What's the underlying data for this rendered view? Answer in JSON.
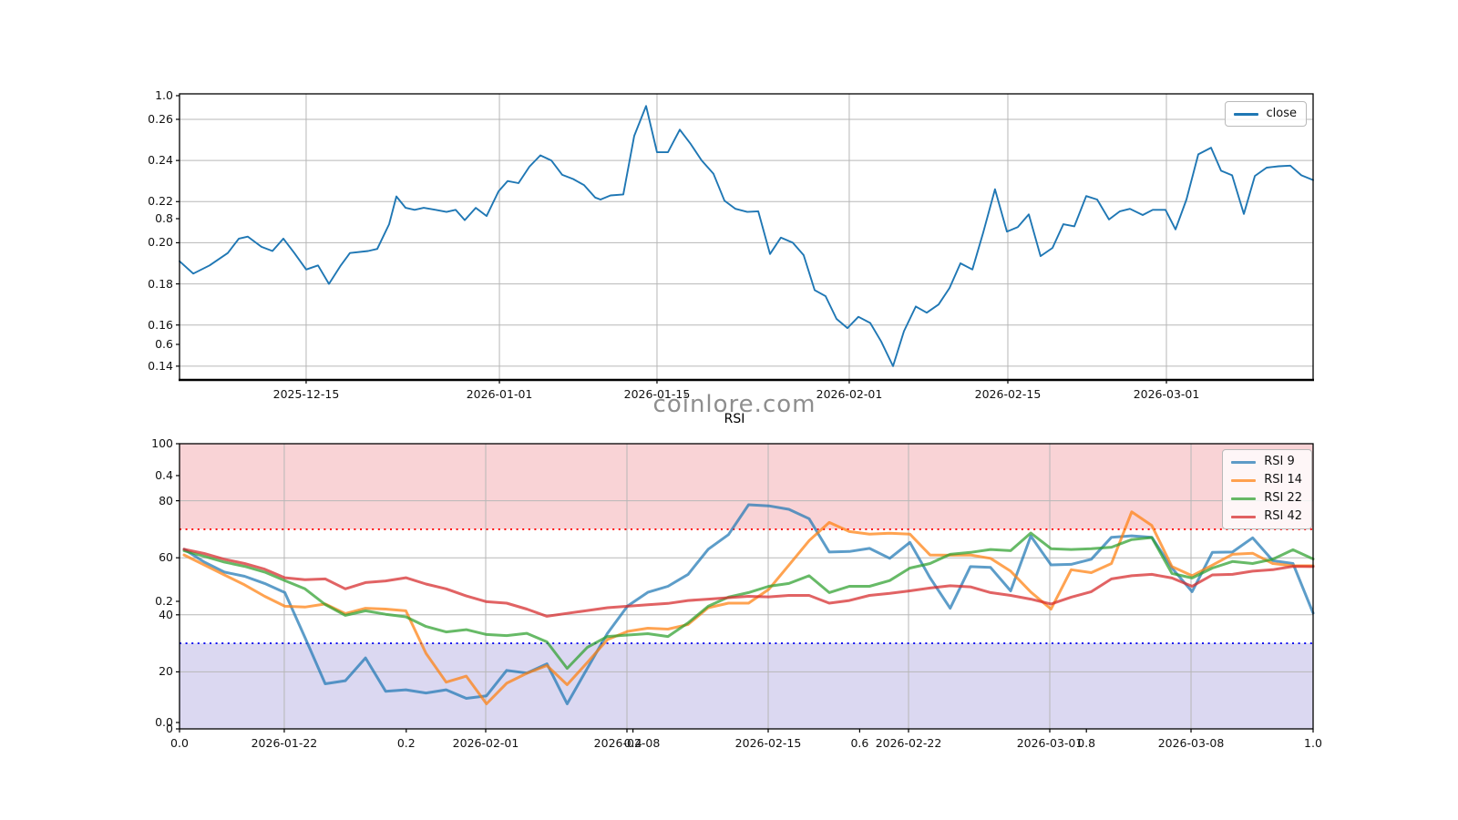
{
  "watermark": "coinlore.com",
  "colors": {
    "close": "#1f77b4",
    "rsi9": "#1f77b4",
    "rsi14": "#ff7f0e",
    "rsi22": "#2ca02c",
    "rsi42": "#d62728",
    "grid": "#b7b7b7",
    "overbought_fill": "#f9d3d6",
    "oversold_fill": "#dbd8f1",
    "overbought_line": "#ff0000",
    "oversold_line": "#0000ee"
  },
  "chart_data": [
    {
      "type": "line",
      "title": "",
      "legend_entries": [
        "close"
      ],
      "ylim": [
        0.1333,
        0.2724
      ],
      "grid": true,
      "legend_position": "upper right",
      "yticks": [
        {
          "label": "0.26",
          "v": 0.26
        },
        {
          "label": "0.24",
          "v": 0.24
        },
        {
          "label": "0.22",
          "v": 0.22
        },
        {
          "label": "0.20",
          "v": 0.2
        },
        {
          "label": "0.18",
          "v": 0.18
        },
        {
          "label": "0.16",
          "v": 0.16
        },
        {
          "label": "0.14",
          "v": 0.14
        }
      ],
      "yticks2": [
        {
          "label": "1.0",
          "fy": 0.0064
        },
        {
          "label": "0.8",
          "fy": 0.4363
        },
        {
          "label": "0.6",
          "fy": 0.8758
        }
      ],
      "xticks": [
        {
          "label": "2025-12-15",
          "f": 0.1117
        },
        {
          "label": "2026-01-01",
          "f": 0.2822
        },
        {
          "label": "2026-01-15",
          "f": 0.4212
        },
        {
          "label": "2026-02-01",
          "f": 0.5908
        },
        {
          "label": "2026-02-15",
          "f": 0.7307
        },
        {
          "label": "2026-03-01",
          "f": 0.8706
        }
      ],
      "xticks2": [],
      "x_range_dates": [
        "2025-12-04",
        "2026-03-14"
      ],
      "series": [
        {
          "name": "close",
          "color": "#1f77b4",
          "width": 1.9,
          "opacity": 1,
          "points": [
            [
              0.0,
              0.191
            ],
            [
              0.0121,
              0.185
            ],
            [
              0.0265,
              0.189
            ],
            [
              0.0426,
              0.195
            ],
            [
              0.0523,
              0.202
            ],
            [
              0.0603,
              0.203
            ],
            [
              0.0723,
              0.198
            ],
            [
              0.082,
              0.196
            ],
            [
              0.0916,
              0.202
            ],
            [
              0.1013,
              0.195
            ],
            [
              0.1117,
              0.187
            ],
            [
              0.1222,
              0.189
            ],
            [
              0.1318,
              0.18
            ],
            [
              0.1423,
              0.189
            ],
            [
              0.1503,
              0.195
            ],
            [
              0.1664,
              0.196
            ],
            [
              0.1744,
              0.197
            ],
            [
              0.1849,
              0.209
            ],
            [
              0.1913,
              0.2225
            ],
            [
              0.1994,
              0.217
            ],
            [
              0.2074,
              0.216
            ],
            [
              0.2154,
              0.217
            ],
            [
              0.2259,
              0.216
            ],
            [
              0.2355,
              0.215
            ],
            [
              0.2436,
              0.216
            ],
            [
              0.2516,
              0.211
            ],
            [
              0.2613,
              0.217
            ],
            [
              0.2709,
              0.213
            ],
            [
              0.2814,
              0.225
            ],
            [
              0.2894,
              0.23
            ],
            [
              0.299,
              0.229
            ],
            [
              0.3087,
              0.237
            ],
            [
              0.3183,
              0.2425
            ],
            [
              0.328,
              0.24
            ],
            [
              0.3376,
              0.233
            ],
            [
              0.3473,
              0.231
            ],
            [
              0.3569,
              0.228
            ],
            [
              0.3666,
              0.222
            ],
            [
              0.3714,
              0.221
            ],
            [
              0.3802,
              0.223
            ],
            [
              0.3915,
              0.2235
            ],
            [
              0.4011,
              0.252
            ],
            [
              0.4116,
              0.2665
            ],
            [
              0.4212,
              0.244
            ],
            [
              0.4309,
              0.244
            ],
            [
              0.4413,
              0.255
            ],
            [
              0.451,
              0.248
            ],
            [
              0.4606,
              0.24
            ],
            [
              0.4711,
              0.2335
            ],
            [
              0.4807,
              0.2205
            ],
            [
              0.4904,
              0.2165
            ],
            [
              0.5008,
              0.215
            ],
            [
              0.5105,
              0.2153
            ],
            [
              0.5209,
              0.1945
            ],
            [
              0.5305,
              0.2025
            ],
            [
              0.541,
              0.2
            ],
            [
              0.5506,
              0.194
            ],
            [
              0.5603,
              0.177
            ],
            [
              0.5699,
              0.174
            ],
            [
              0.5796,
              0.163
            ],
            [
              0.5892,
              0.1585
            ],
            [
              0.5989,
              0.164
            ],
            [
              0.6093,
              0.161
            ],
            [
              0.619,
              0.152
            ],
            [
              0.6294,
              0.14
            ],
            [
              0.6391,
              0.157
            ],
            [
              0.6495,
              0.169
            ],
            [
              0.6592,
              0.166
            ],
            [
              0.6696,
              0.17
            ],
            [
              0.6793,
              0.178
            ],
            [
              0.6889,
              0.19
            ],
            [
              0.6994,
              0.187
            ],
            [
              0.709,
              0.205
            ],
            [
              0.7194,
              0.226
            ],
            [
              0.7299,
              0.2054
            ],
            [
              0.7395,
              0.2076
            ],
            [
              0.7492,
              0.2138
            ],
            [
              0.7596,
              0.1935
            ],
            [
              0.7701,
              0.1975
            ],
            [
              0.7797,
              0.209
            ],
            [
              0.7894,
              0.208
            ],
            [
              0.7998,
              0.2227
            ],
            [
              0.8095,
              0.221
            ],
            [
              0.8199,
              0.2113
            ],
            [
              0.8296,
              0.2153
            ],
            [
              0.8384,
              0.2165
            ],
            [
              0.8497,
              0.2135
            ],
            [
              0.8585,
              0.216
            ],
            [
              0.8698,
              0.216
            ],
            [
              0.8786,
              0.2065
            ],
            [
              0.8883,
              0.221
            ],
            [
              0.8987,
              0.243
            ],
            [
              0.91,
              0.2462
            ],
            [
              0.9188,
              0.235
            ],
            [
              0.9285,
              0.2328
            ],
            [
              0.9389,
              0.214
            ],
            [
              0.9486,
              0.2325
            ],
            [
              0.959,
              0.2365
            ],
            [
              0.9695,
              0.2372
            ],
            [
              0.9799,
              0.2375
            ],
            [
              0.9896,
              0.2328
            ],
            [
              1.0,
              0.2305
            ]
          ]
        }
      ]
    },
    {
      "type": "line",
      "title": "RSI",
      "legend_entries": [
        "RSI 9",
        "RSI 14",
        "RSI 22",
        "RSI 42"
      ],
      "ylim": [
        0,
        100
      ],
      "grid": true,
      "legend_position": "upper right",
      "bands": [
        {
          "from": 70,
          "to": 100,
          "color": "#f9d3d6",
          "name": "overbought-band"
        },
        {
          "from": 0,
          "to": 30,
          "color": "#dbd8f1",
          "name": "oversold-band"
        }
      ],
      "hlines": [
        {
          "v": 70,
          "color": "#ff0000",
          "style": "dotted",
          "name": "overbought-threshold"
        },
        {
          "v": 30,
          "color": "#0000ee",
          "style": "dotted",
          "name": "oversold-threshold"
        }
      ],
      "yticks": [
        {
          "label": "100",
          "v": 100
        },
        {
          "label": "80",
          "v": 80
        },
        {
          "label": "60",
          "v": 60
        },
        {
          "label": "40",
          "v": 40
        },
        {
          "label": "20",
          "v": 20
        },
        {
          "label": "0",
          "v": 0
        }
      ],
      "yticks2": [
        {
          "label": "0.4",
          "fy": 0.1118
        },
        {
          "label": "0.2",
          "fy": 0.5527
        },
        {
          "label": "0.0",
          "fy": 0.9776
        }
      ],
      "xticks": [
        {
          "label": "2026-01-22",
          "f": 0.0924
        },
        {
          "label": "2026-02-01",
          "f": 0.2701
        },
        {
          "label": "2026-02-08",
          "f": 0.3947
        },
        {
          "label": "2026-02-15",
          "f": 0.5193
        },
        {
          "label": "2026-02-22",
          "f": 0.6431
        },
        {
          "label": "2026-03-01",
          "f": 0.7677
        },
        {
          "label": "2026-03-08",
          "f": 0.8923
        }
      ],
      "xticks2": [
        {
          "label": "0.0",
          "f": 0.0
        },
        {
          "label": "0.2",
          "f": 0.2
        },
        {
          "label": "0.4",
          "f": 0.4
        },
        {
          "label": "0.6",
          "f": 0.6
        },
        {
          "label": "0.8",
          "f": 0.8
        },
        {
          "label": "1.0",
          "f": 1.0
        }
      ],
      "x_range_dates": [
        "2026-01-17",
        "2026-03-14"
      ],
      "series": [
        {
          "name": "RSI 9",
          "color": "#1f77b4",
          "width": 3,
          "opacity": 0.72,
          "xstart": 0.004,
          "xend": 1.0,
          "values": [
            63,
            58.5,
            55,
            53.5,
            51,
            47.8,
            32,
            15.8,
            16.9,
            24.9,
            13.2,
            13.7,
            12.6,
            13.7,
            10.7,
            11.6,
            20.5,
            19.6,
            22.8,
            8.8,
            21.2,
            33.5,
            43.1,
            47.9,
            50,
            54.2,
            63,
            68.1,
            78.6,
            78.2,
            77,
            73.7,
            62,
            62.2,
            63.3,
            59.8,
            65.4,
            53,
            42.3,
            56.9,
            56.6,
            48.4,
            67.6,
            57.5,
            57.7,
            59.5,
            67.2,
            67.7,
            67.2,
            56.4,
            48.1,
            61.9,
            62,
            67,
            59,
            58,
            40.6
          ]
        },
        {
          "name": "RSI 14",
          "color": "#ff7f0e",
          "width": 3,
          "opacity": 0.72,
          "xstart": 0.004,
          "xend": 1.0,
          "values": [
            61,
            57.5,
            54,
            50.5,
            46.5,
            43,
            42.7,
            43.8,
            40.4,
            42.3,
            42,
            41.4,
            26.5,
            16.4,
            18.5,
            8.8,
            16,
            19.5,
            22.2,
            15.5,
            23.3,
            31.3,
            34.2,
            35.3,
            35,
            36.6,
            42.5,
            44.1,
            44.1,
            48.9,
            57.4,
            66,
            72.4,
            69.2,
            68.3,
            68.6,
            68.3,
            61,
            60.9,
            61,
            59.8,
            55.3,
            48,
            42,
            55.8,
            54.8,
            58,
            76.1,
            71.3,
            56.9,
            53.7,
            57.4,
            61.2,
            61.6,
            58,
            57.2,
            57.2
          ]
        },
        {
          "name": "RSI 22",
          "color": "#2ca02c",
          "width": 3,
          "opacity": 0.72,
          "xstart": 0.004,
          "xend": 1.0,
          "values": [
            62.5,
            60.5,
            58.5,
            57,
            55,
            52,
            49.1,
            43.6,
            39.8,
            41.4,
            40.2,
            39.3,
            35.9,
            34,
            34.8,
            33.1,
            32.7,
            33.5,
            30.5,
            21.2,
            28.6,
            32.4,
            32.9,
            33.4,
            32.4,
            37.2,
            43,
            46.2,
            47.8,
            50,
            51,
            53.7,
            47.8,
            50,
            50,
            52,
            56.4,
            58,
            61.2,
            61.9,
            62.9,
            62.5,
            68.7,
            63.2,
            62.9,
            63.2,
            63.7,
            66.4,
            67.1,
            54.5,
            52.9,
            56.4,
            58.7,
            58,
            59.5,
            62.8,
            59.6
          ]
        },
        {
          "name": "RSI 42",
          "color": "#d62728",
          "width": 3,
          "opacity": 0.72,
          "xstart": 0.004,
          "xend": 1.0,
          "values": [
            63,
            61.5,
            59.5,
            58,
            56,
            53,
            52.3,
            52.6,
            49.1,
            51.3,
            51.9,
            53,
            50.8,
            49.1,
            46.6,
            44.6,
            44.1,
            42,
            39.5,
            40.5,
            41.5,
            42.5,
            43,
            43.5,
            44,
            45,
            45.5,
            46,
            46.5,
            46.3,
            46.8,
            46.8,
            44.1,
            45,
            46.8,
            47.5,
            48.4,
            49.4,
            50.2,
            49.8,
            47.8,
            46.8,
            45.5,
            43.8,
            46.2,
            48.1,
            52.6,
            53.7,
            54.2,
            52.9,
            50,
            54,
            54.2,
            55.3,
            55.8,
            57,
            56.9
          ]
        }
      ]
    }
  ]
}
